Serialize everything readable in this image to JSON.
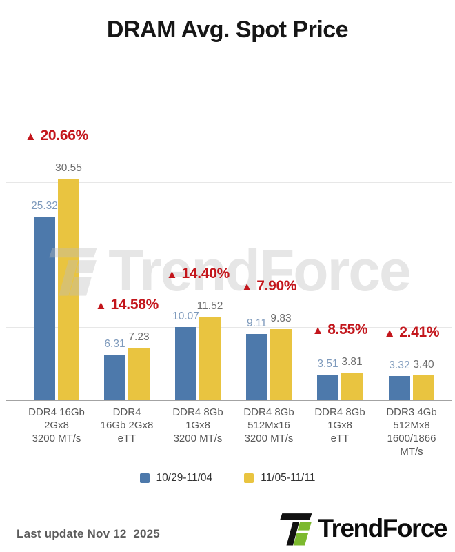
{
  "title": "DRAM Avg. Spot Price",
  "watermark": {
    "text": "TrendForce",
    "glyph": "trendforce-logo"
  },
  "footer": {
    "last_update": "Last update Nov 12  2025",
    "brand_text": "TrendForce",
    "brand_glyph": "trendforce-logo"
  },
  "icons": {
    "up_triangle": "▲"
  },
  "colors": {
    "series1": "#4d79ab",
    "series2": "#e9c440",
    "series1_label": "#7e9abc",
    "series2_label": "#6d6d6d",
    "annotation_red": "#c3161c",
    "grid": "#e7e7e7",
    "axis": "#a3a3a3",
    "logo_green": "#7cb92e",
    "logo_black": "#111111"
  },
  "chart_data": {
    "type": "bar",
    "title": "DRAM Avg. Spot Price",
    "categories": [
      [
        "DDR4 16Gb",
        "2Gx8",
        "3200 MT/s"
      ],
      [
        "DDR4",
        "16Gb 2Gx8",
        "eTT"
      ],
      [
        "DDR4 8Gb",
        "1Gx8",
        "3200 MT/s"
      ],
      [
        "DDR4 8Gb",
        "512Mx16",
        "3200 MT/s"
      ],
      [
        "DDR4 8Gb",
        "1Gx8",
        "eTT"
      ],
      [
        "DDR3 4Gb",
        "512Mx8",
        "1600/1866",
        "MT/s"
      ]
    ],
    "series": [
      {
        "name": "10/29-11/04",
        "color": "#4d79ab",
        "label_color": "#7e9abc",
        "values": [
          25.32,
          6.31,
          10.07,
          9.11,
          3.51,
          3.32
        ],
        "value_labels": [
          "25.32",
          "6.31",
          "10.07",
          "9.11",
          "3.51",
          "3.32"
        ]
      },
      {
        "name": "11/05-11/11",
        "color": "#e9c440",
        "label_color": "#6d6d6d",
        "values": [
          30.55,
          7.23,
          11.52,
          9.83,
          3.81,
          3.4
        ],
        "value_labels": [
          "30.55",
          "7.23",
          "11.52",
          "9.83",
          "3.81",
          "3.40"
        ]
      }
    ],
    "change_annotations": [
      {
        "direction": "up",
        "icon": "▲",
        "text": "20.66%"
      },
      {
        "direction": "up",
        "icon": "▲",
        "text": "14.58%"
      },
      {
        "direction": "up",
        "icon": "▲",
        "text": "14.40%"
      },
      {
        "direction": "up",
        "icon": "▲",
        "text": "7.90%"
      },
      {
        "direction": "up",
        "icon": "▲",
        "text": "8.55%"
      },
      {
        "direction": "up",
        "icon": "▲",
        "text": "2.41%"
      }
    ],
    "annotation_color": "#c3161c",
    "ylim": [
      0,
      43
    ],
    "gridline_values": [
      10,
      20,
      30,
      40
    ],
    "grid": true,
    "legend_position": "bottom"
  }
}
